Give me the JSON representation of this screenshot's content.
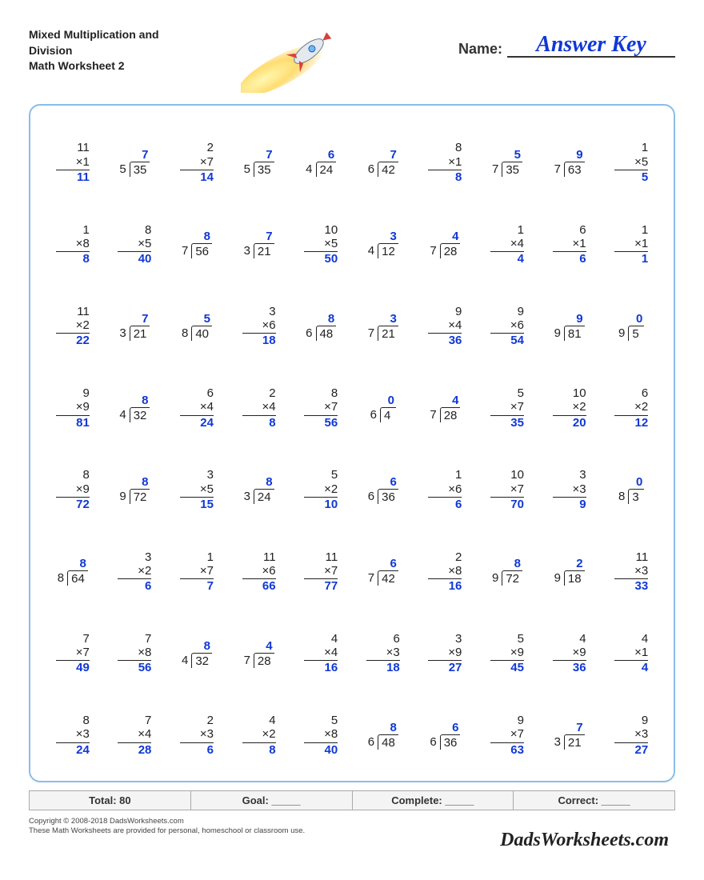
{
  "header": {
    "title_line1": "Mixed Multiplication and Division",
    "title_line2": "Math Worksheet 2",
    "name_label": "Name:",
    "name_value": "Answer Key"
  },
  "colors": {
    "answer": "#1038d6",
    "frame_border": "#8abde8",
    "text": "#222222",
    "strip_bg": "#f4f4f4",
    "strip_border": "#aaaaaa"
  },
  "footer_strip": {
    "total_label": "Total: 80",
    "goal_label": "Goal: _____",
    "complete_label": "Complete: _____",
    "correct_label": "Correct: _____"
  },
  "copyright": {
    "line1": "Copyright © 2008-2018 DadsWorksheets.com",
    "line2": "These Math Worksheets are provided for personal, homeschool or classroom use."
  },
  "brand": "DadsWorksheets.com",
  "grid": {
    "cols": 10,
    "rows": 8,
    "problems": [
      [
        {
          "t": "m",
          "a": 11,
          "b": 1,
          "r": 11
        },
        {
          "t": "d",
          "dv": 5,
          "dd": 35,
          "q": 7
        },
        {
          "t": "m",
          "a": 2,
          "b": 7,
          "r": 14
        },
        {
          "t": "d",
          "dv": 5,
          "dd": 35,
          "q": 7
        },
        {
          "t": "d",
          "dv": 4,
          "dd": 24,
          "q": 6
        },
        {
          "t": "d",
          "dv": 6,
          "dd": 42,
          "q": 7
        },
        {
          "t": "m",
          "a": 8,
          "b": 1,
          "r": 8
        },
        {
          "t": "d",
          "dv": 7,
          "dd": 35,
          "q": 5
        },
        {
          "t": "d",
          "dv": 7,
          "dd": 63,
          "q": 9
        },
        {
          "t": "m",
          "a": 1,
          "b": 5,
          "r": 5
        }
      ],
      [
        {
          "t": "m",
          "a": 1,
          "b": 8,
          "r": 8
        },
        {
          "t": "m",
          "a": 8,
          "b": 5,
          "r": 40
        },
        {
          "t": "d",
          "dv": 7,
          "dd": 56,
          "q": 8
        },
        {
          "t": "d",
          "dv": 3,
          "dd": 21,
          "q": 7
        },
        {
          "t": "m",
          "a": 10,
          "b": 5,
          "r": 50
        },
        {
          "t": "d",
          "dv": 4,
          "dd": 12,
          "q": 3
        },
        {
          "t": "d",
          "dv": 7,
          "dd": 28,
          "q": 4
        },
        {
          "t": "m",
          "a": 1,
          "b": 4,
          "r": 4
        },
        {
          "t": "m",
          "a": 6,
          "b": 1,
          "r": 6
        },
        {
          "t": "m",
          "a": 1,
          "b": 1,
          "r": 1
        }
      ],
      [
        {
          "t": "m",
          "a": 11,
          "b": 2,
          "r": 22
        },
        {
          "t": "d",
          "dv": 3,
          "dd": 21,
          "q": 7
        },
        {
          "t": "d",
          "dv": 8,
          "dd": 40,
          "q": 5
        },
        {
          "t": "m",
          "a": 3,
          "b": 6,
          "r": 18
        },
        {
          "t": "d",
          "dv": 6,
          "dd": 48,
          "q": 8
        },
        {
          "t": "d",
          "dv": 7,
          "dd": 21,
          "q": 3
        },
        {
          "t": "m",
          "a": 9,
          "b": 4,
          "r": 36
        },
        {
          "t": "m",
          "a": 9,
          "b": 6,
          "r": 54
        },
        {
          "t": "d",
          "dv": 9,
          "dd": 81,
          "q": 9
        },
        {
          "t": "d",
          "dv": 9,
          "dd": 5,
          "q": 0
        }
      ],
      [
        {
          "t": "m",
          "a": 9,
          "b": 9,
          "r": 81
        },
        {
          "t": "d",
          "dv": 4,
          "dd": 32,
          "q": 8
        },
        {
          "t": "m",
          "a": 6,
          "b": 4,
          "r": 24
        },
        {
          "t": "m",
          "a": 2,
          "b": 4,
          "r": 8
        },
        {
          "t": "m",
          "a": 8,
          "b": 7,
          "r": 56
        },
        {
          "t": "d",
          "dv": 6,
          "dd": 4,
          "q": 0
        },
        {
          "t": "d",
          "dv": 7,
          "dd": 28,
          "q": 4
        },
        {
          "t": "m",
          "a": 5,
          "b": 7,
          "r": 35
        },
        {
          "t": "m",
          "a": 10,
          "b": 2,
          "r": 20
        },
        {
          "t": "m",
          "a": 6,
          "b": 2,
          "r": 12
        }
      ],
      [
        {
          "t": "m",
          "a": 8,
          "b": 9,
          "r": 72
        },
        {
          "t": "d",
          "dv": 9,
          "dd": 72,
          "q": 8
        },
        {
          "t": "m",
          "a": 3,
          "b": 5,
          "r": 15
        },
        {
          "t": "d",
          "dv": 3,
          "dd": 24,
          "q": 8
        },
        {
          "t": "m",
          "a": 5,
          "b": 2,
          "r": 10
        },
        {
          "t": "d",
          "dv": 6,
          "dd": 36,
          "q": 6
        },
        {
          "t": "m",
          "a": 1,
          "b": 6,
          "r": 6
        },
        {
          "t": "m",
          "a": 10,
          "b": 7,
          "r": 70
        },
        {
          "t": "m",
          "a": 3,
          "b": 3,
          "r": 9
        },
        {
          "t": "d",
          "dv": 8,
          "dd": 3,
          "q": 0
        }
      ],
      [
        {
          "t": "d",
          "dv": 8,
          "dd": 64,
          "q": 8
        },
        {
          "t": "m",
          "a": 3,
          "b": 2,
          "r": 6
        },
        {
          "t": "m",
          "a": 1,
          "b": 7,
          "r": 7
        },
        {
          "t": "m",
          "a": 11,
          "b": 6,
          "r": 66
        },
        {
          "t": "m",
          "a": 11,
          "b": 7,
          "r": 77
        },
        {
          "t": "d",
          "dv": 7,
          "dd": 42,
          "q": 6
        },
        {
          "t": "m",
          "a": 2,
          "b": 8,
          "r": 16
        },
        {
          "t": "d",
          "dv": 9,
          "dd": 72,
          "q": 8
        },
        {
          "t": "d",
          "dv": 9,
          "dd": 18,
          "q": 2
        },
        {
          "t": "m",
          "a": 11,
          "b": 3,
          "r": 33
        }
      ],
      [
        {
          "t": "m",
          "a": 7,
          "b": 7,
          "r": 49
        },
        {
          "t": "m",
          "a": 7,
          "b": 8,
          "r": 56
        },
        {
          "t": "d",
          "dv": 4,
          "dd": 32,
          "q": 8
        },
        {
          "t": "d",
          "dv": 7,
          "dd": 28,
          "q": 4
        },
        {
          "t": "m",
          "a": 4,
          "b": 4,
          "r": 16
        },
        {
          "t": "m",
          "a": 6,
          "b": 3,
          "r": 18
        },
        {
          "t": "m",
          "a": 3,
          "b": 9,
          "r": 27
        },
        {
          "t": "m",
          "a": 5,
          "b": 9,
          "r": 45
        },
        {
          "t": "m",
          "a": 4,
          "b": 9,
          "r": 36
        },
        {
          "t": "m",
          "a": 4,
          "b": 1,
          "r": 4
        }
      ],
      [
        {
          "t": "m",
          "a": 8,
          "b": 3,
          "r": 24
        },
        {
          "t": "m",
          "a": 7,
          "b": 4,
          "r": 28
        },
        {
          "t": "m",
          "a": 2,
          "b": 3,
          "r": 6
        },
        {
          "t": "m",
          "a": 4,
          "b": 2,
          "r": 8
        },
        {
          "t": "m",
          "a": 5,
          "b": 8,
          "r": 40
        },
        {
          "t": "d",
          "dv": 6,
          "dd": 48,
          "q": 8
        },
        {
          "t": "d",
          "dv": 6,
          "dd": 36,
          "q": 6
        },
        {
          "t": "m",
          "a": 9,
          "b": 7,
          "r": 63
        },
        {
          "t": "d",
          "dv": 3,
          "dd": 21,
          "q": 7
        },
        {
          "t": "m",
          "a": 9,
          "b": 3,
          "r": 27
        }
      ]
    ]
  }
}
